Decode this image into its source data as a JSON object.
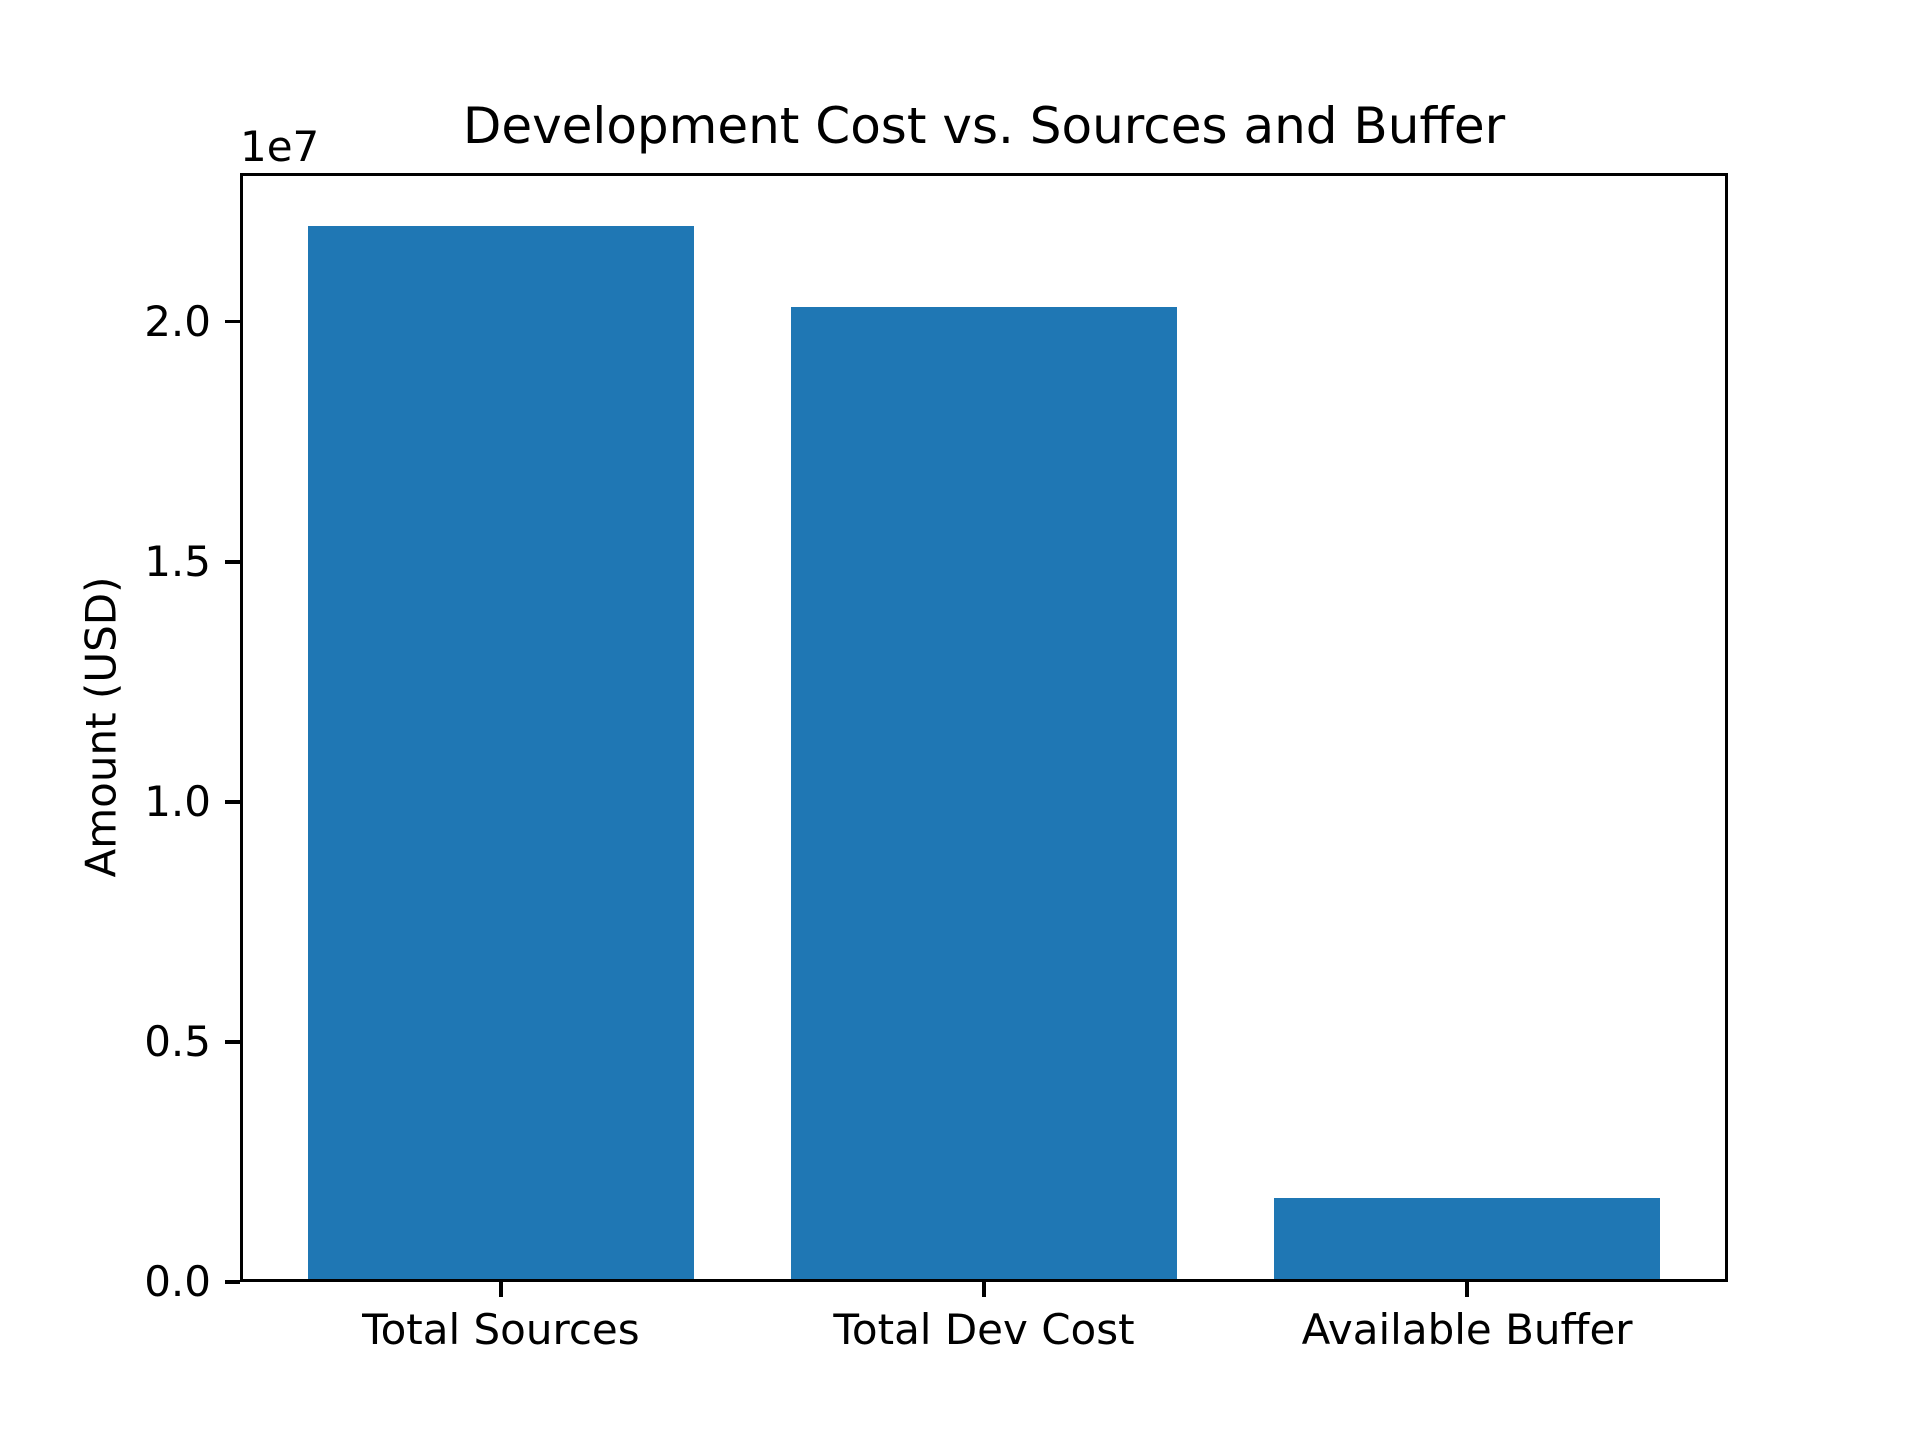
{
  "chart_data": {
    "type": "bar",
    "title": "Development Cost vs. Sources and Buffer",
    "ylabel": "Amount (USD)",
    "xlabel": "",
    "offset_text": "1e7",
    "categories": [
      "Total Sources",
      "Total Dev Cost",
      "Available Buffer"
    ],
    "values": [
      22000000,
      20300000,
      1750000
    ],
    "bar_color": "#1f77b4",
    "ylim": [
      0,
      23100000
    ],
    "xlim": [
      -0.54,
      2.54
    ],
    "bar_width": 0.8,
    "yticks": [
      0,
      5000000,
      10000000,
      15000000,
      20000000
    ],
    "ytick_labels": [
      "0.0",
      "0.5",
      "1.0",
      "1.5",
      "2.0"
    ],
    "grid": false,
    "legend": null
  }
}
